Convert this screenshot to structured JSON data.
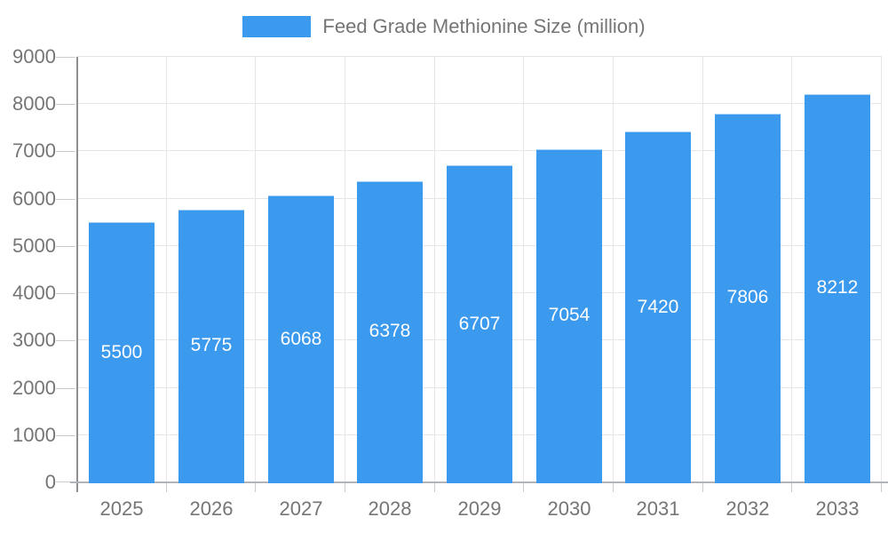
{
  "legend": {
    "label": "Feed Grade Methionine Size (million)",
    "swatch_color": "#3b99ee"
  },
  "chart_data": {
    "type": "bar",
    "title": "Feed Grade Methionine Size (million)",
    "series_name": "Feed Grade Methionine Size (million)",
    "categories": [
      "2025",
      "2026",
      "2027",
      "2028",
      "2029",
      "2030",
      "2031",
      "2032",
      "2033"
    ],
    "values": [
      5500,
      5775,
      6068,
      6378,
      6707,
      7054,
      7420,
      7806,
      8212
    ],
    "value_labels": [
      "5500",
      "5775",
      "6068",
      "6378",
      "6707",
      "7054",
      "7420",
      "7806",
      "8212"
    ],
    "xlabel": "",
    "ylabel": "",
    "ylim": [
      0,
      9000
    ],
    "ytick_interval": 1000,
    "ytick_labels": [
      "0",
      "1000",
      "2000",
      "3000",
      "4000",
      "5000",
      "6000",
      "7000",
      "8000",
      "9000"
    ],
    "grid": "horizontal gridlines plus vertical gridlines at category boundaries",
    "legend_position": "top-center",
    "colors": {
      "bar": "#3b99ee",
      "bar_value_text": "#ffffff",
      "axis_text": "#757575",
      "gridline": "#e6e6e6",
      "y_axis_line": "#8f8f8f",
      "baseline": "#b0b3b8",
      "tick": "#cccccc",
      "background": "#ffffff"
    }
  }
}
